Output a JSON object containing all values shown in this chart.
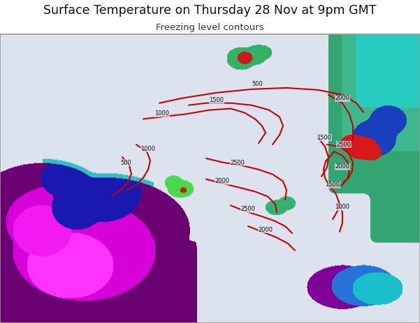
{
  "title": "Surface Temperature on Thursday 28 Nov at 9pm GMT",
  "subtitle": "Freezing level contours",
  "title_fontsize": 12.5,
  "subtitle_fontsize": 9.5,
  "fig_width": 6.01,
  "fig_height": 4.63,
  "dpi": 100,
  "bg_color": "#ffffff",
  "ocean_color": "#dde2f0",
  "contour_color": "#cc0000",
  "grid_color": "#c0c4d8"
}
